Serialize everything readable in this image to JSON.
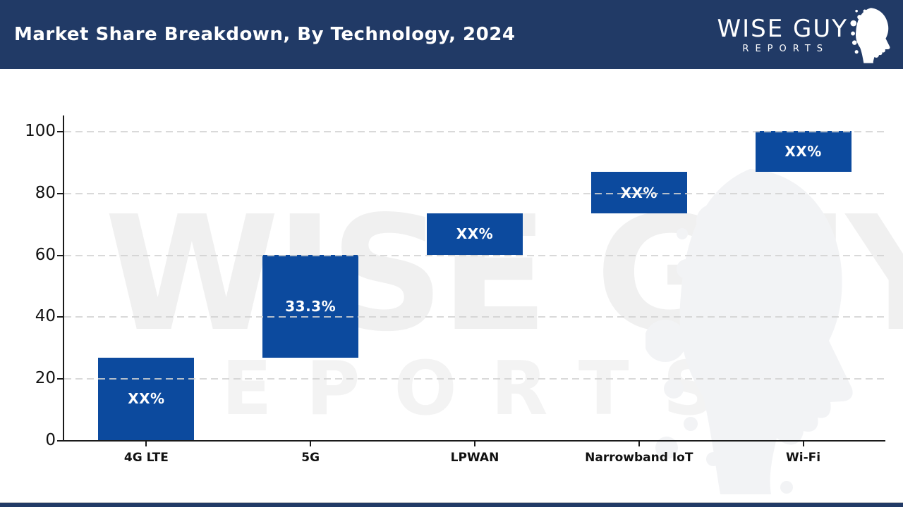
{
  "header": {
    "title": "Market Share Breakdown, By Technology, 2024",
    "bg_color": "#213A66",
    "logo": {
      "line1": "WISE GUY",
      "line2": "REPORTS"
    }
  },
  "watermark": {
    "line1": "WISE GUY",
    "line2": "REPORTS"
  },
  "chart_data": {
    "type": "bar",
    "subtype": "waterfall",
    "title": "Market Share Breakdown, By Technology, 2024",
    "xlabel": "",
    "ylabel": "",
    "ylim": [
      0,
      105
    ],
    "yticks": [
      0,
      20,
      40,
      60,
      80,
      100
    ],
    "grid": "horizontal-dashed",
    "legend": "none",
    "bar_color": "#0C4A9E",
    "categories": [
      "4G LTE",
      "5G",
      "LPWAN",
      "Narrowband IoT",
      "Wi-Fi"
    ],
    "segments": [
      {
        "category": "4G LTE",
        "start": 0,
        "end": 26.7,
        "value": 26.7,
        "value_label": "XX%"
      },
      {
        "category": "5G",
        "start": 26.7,
        "end": 60.0,
        "value": 33.3,
        "value_label": "33.3%"
      },
      {
        "category": "LPWAN",
        "start": 60.0,
        "end": 73.3,
        "value": 13.3,
        "value_label": "XX%"
      },
      {
        "category": "Narrowband IoT",
        "start": 73.3,
        "end": 86.7,
        "value": 13.4,
        "value_label": "XX%"
      },
      {
        "category": "Wi-Fi",
        "start": 86.7,
        "end": 100.0,
        "value": 13.3,
        "value_label": "XX%"
      }
    ]
  }
}
